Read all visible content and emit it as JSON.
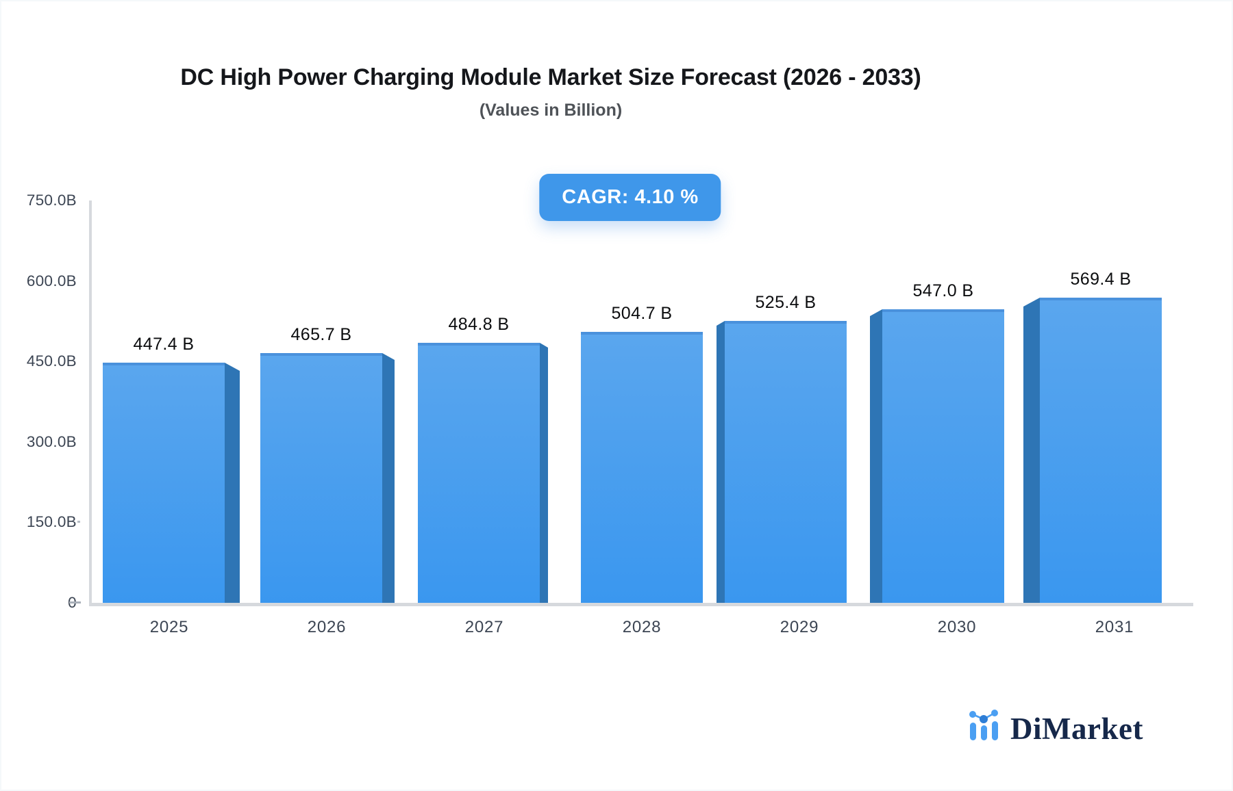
{
  "header": {
    "title": "DC High Power Charging Module Market Size Forecast (2026 - 2033)",
    "subtitle": "(Values in Billion)",
    "cagr_label": "CAGR: 4.10 %"
  },
  "chart_data": {
    "type": "bar",
    "title": "DC High Power Charging Module Market Size Forecast (2026 - 2033)",
    "subtitle": "(Values in Billion)",
    "cagr_percent": 4.1,
    "unit": "Billion (B)",
    "categories": [
      "2025",
      "2026",
      "2027",
      "2028",
      "2029",
      "2030",
      "2031"
    ],
    "values": [
      447.4,
      465.7,
      484.8,
      504.7,
      525.4,
      547.0,
      569.4
    ],
    "value_labels": [
      "447.4 B",
      "465.7 B",
      "484.8 B",
      "504.7 B",
      "525.4 B",
      "547.0 B",
      "569.4 B"
    ],
    "ylim": [
      0,
      750
    ],
    "yticks": [
      "750.0B",
      "600.0B",
      "450.0B",
      "300.0B",
      "150.0B",
      "0"
    ],
    "grid": "off",
    "legend": "none",
    "bar_style": "3d-perspective"
  },
  "branding": {
    "logo_text": "DiMarket",
    "logo_icon": "bar-chart-trend-icon"
  },
  "colors": {
    "bar_face_top": "#5aa6ee",
    "bar_face_bottom": "#3a97ef",
    "bar_top_edge": "#4a91dc",
    "bar_side": "#2e75b5",
    "axis_line": "#d6d9dd",
    "badge_bg": "#3f97ea",
    "badge_text": "#ffffff",
    "title_text": "#15171b",
    "subtitle_text": "#4e5257",
    "tick_text": "#3c4553",
    "value_text": "#0c0d0f",
    "logo_text": "#16284a",
    "logo_blue": "#4b9ff2",
    "logo_blue_dark": "#2e7ed6"
  }
}
